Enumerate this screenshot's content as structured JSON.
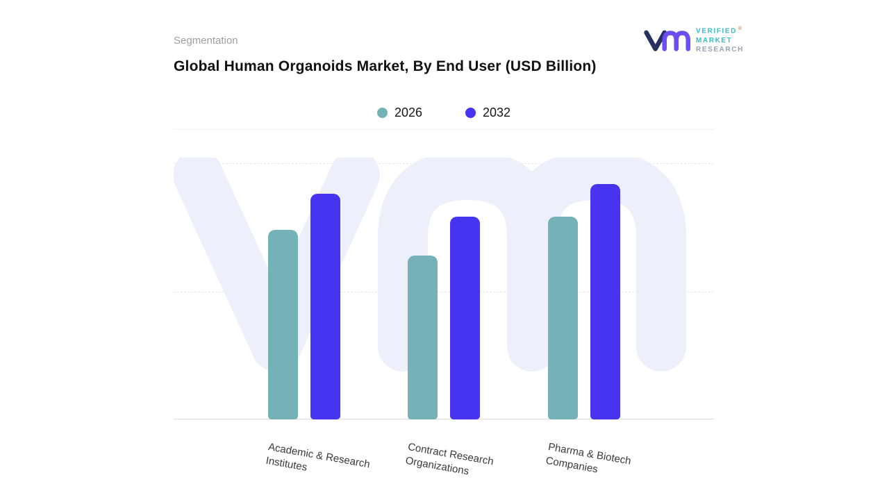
{
  "header": {
    "segmentation_label": "Segmentation",
    "logo": {
      "line1": "VERIFIED",
      "line2": "MARKET",
      "line3": "RESEARCH",
      "registered": "®"
    }
  },
  "chart_data": {
    "type": "bar",
    "title": "Global Human Organoids Market, By End User (USD Billion)",
    "categories": [
      {
        "lines": [
          "Academic & Research",
          "Institutes"
        ]
      },
      {
        "lines": [
          "Contract Research",
          "Organizations"
        ]
      },
      {
        "lines": [
          "Pharma & Biotech",
          "Companies"
        ]
      }
    ],
    "series": [
      {
        "name": "2026",
        "color": "#74b2b7",
        "values": [
          7.4,
          6.4,
          7.9
        ]
      },
      {
        "name": "2032",
        "color": "#4634f0",
        "values": [
          8.8,
          7.9,
          9.2
        ]
      }
    ],
    "xlabel": "",
    "ylabel": "",
    "ylim": [
      0,
      10
    ],
    "y_axis_labels_visible": false,
    "values_estimated": true,
    "grid": "horizontal-dashed",
    "legend_position": "top-center",
    "watermark": "vm",
    "colors": {
      "teal": "#74b2b7",
      "indigo": "#4634f0",
      "watermark": "#edeffb",
      "gridline": "#e8e8ea",
      "baseline": "#dcdce0"
    }
  }
}
